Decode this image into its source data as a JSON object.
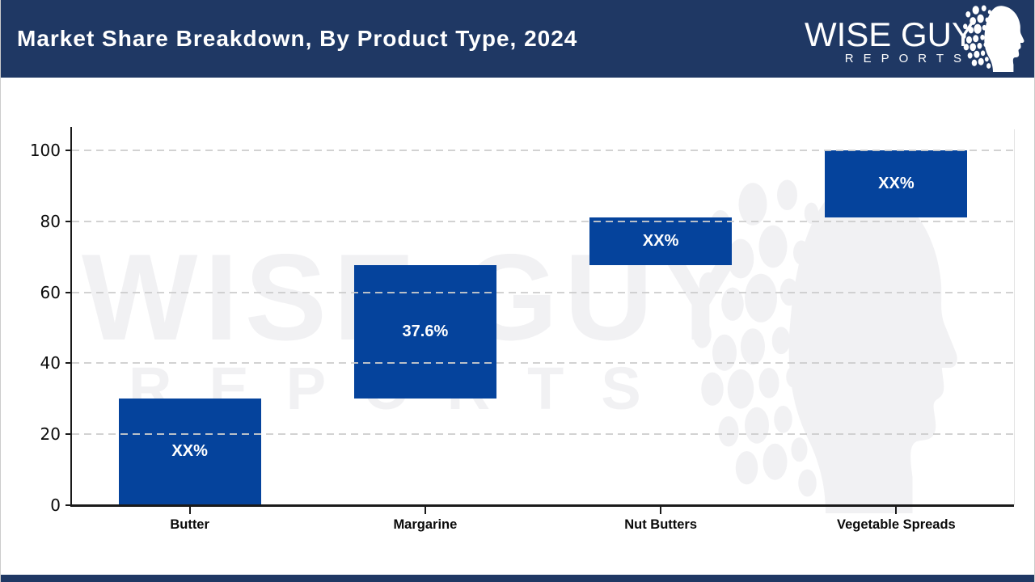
{
  "header": {
    "title": "Market Share Breakdown, By Product Type, 2024",
    "logo": {
      "wordmark": "WISE GUY",
      "tagline": "REPORTS"
    }
  },
  "watermark": {
    "wordmark": "WISE GUY",
    "tagline": "REPORTS"
  },
  "chart_data": {
    "type": "bar",
    "variant": "floating_segment_waterfall",
    "title": "Market Share Breakdown, By Product Type, 2024",
    "categories": [
      "Butter",
      "Margarine",
      "Nut Butters",
      "Vegetable Spreads"
    ],
    "bars": [
      {
        "category": "Butter",
        "start": 0,
        "end": 30,
        "label": "XX%"
      },
      {
        "category": "Margarine",
        "start": 30,
        "end": 67.6,
        "label": "37.6%"
      },
      {
        "category": "Nut Butters",
        "start": 67.6,
        "end": 81,
        "label": "XX%"
      },
      {
        "category": "Vegetable Spreads",
        "start": 81,
        "end": 100,
        "label": "XX%"
      }
    ],
    "xlabel": "",
    "ylabel": "",
    "ylim": [
      0,
      100
    ],
    "yticks": [
      0,
      20,
      40,
      60,
      80,
      100
    ],
    "grid": "horizontal_dashed",
    "legend": "none"
  },
  "colors": {
    "header_bg": "#1F3864",
    "footer_bg": "#1F3864",
    "bar_fill": "#05439C",
    "bar_label": "#FFFFFF",
    "axis": "#1A1A1A",
    "gridline": "#D9D9D9",
    "watermark": "#F1F1F3",
    "background": "#FFFFFF"
  }
}
